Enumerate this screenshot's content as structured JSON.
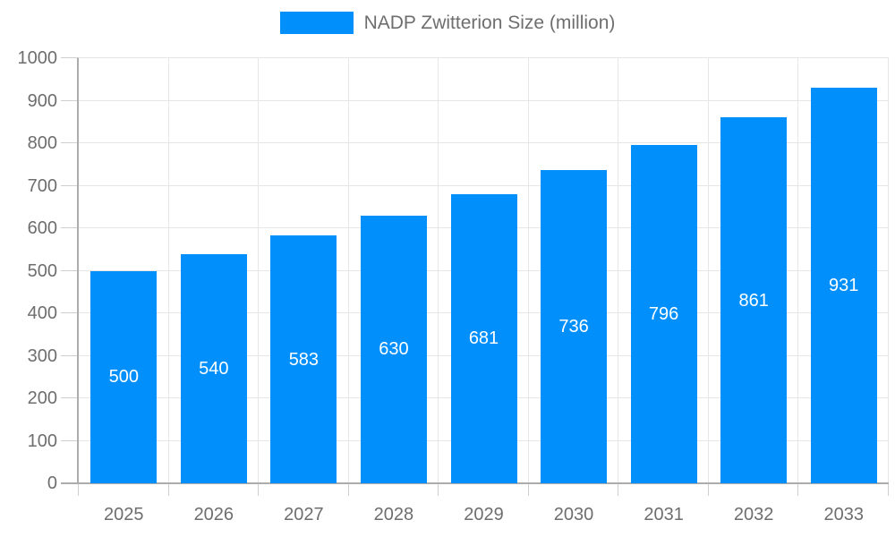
{
  "chart_data": {
    "type": "bar",
    "title": "NADP Zwitterion Size (million)",
    "categories": [
      "2025",
      "2026",
      "2027",
      "2028",
      "2029",
      "2030",
      "2031",
      "2032",
      "2033"
    ],
    "series": [
      {
        "name": "NADP Zwitterion Size (million)",
        "values": [
          500,
          540,
          583,
          630,
          681,
          736,
          796,
          861,
          931
        ]
      }
    ],
    "xlabel": "",
    "ylabel": "",
    "ylim": [
      0,
      1000
    ],
    "ytick_step": 100,
    "grid": true,
    "legend_position": "top-center",
    "value_labels_shown": true,
    "colors": {
      "bar": "#008FFB",
      "value_label": "#FFFFFF",
      "axis_text": "#6E6E6E",
      "grid_line": "#E6E6E6",
      "tick_line": "#CFCFCF",
      "axis_line": "#ACACAC",
      "background": "#FFFFFF"
    }
  }
}
